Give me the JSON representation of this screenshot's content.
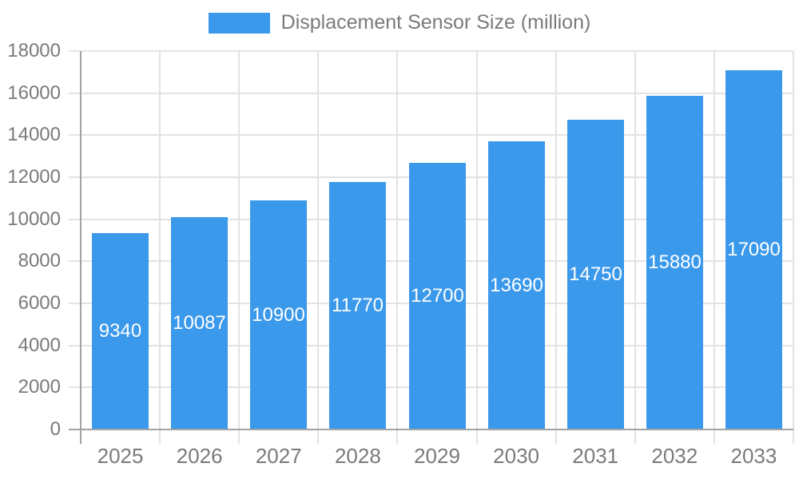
{
  "legend": {
    "label": "Displacement Sensor Size (million)"
  },
  "colors": {
    "bar": "#3B99EC",
    "grid": "#E3E3E3",
    "axis": "#A3A3A3",
    "text": "#7A7A7A",
    "value_label": "#FFFFFF",
    "background": "#FFFFFF"
  },
  "chart_data": {
    "type": "bar",
    "title": "Displacement Sensor Size (million)",
    "categories": [
      "2025",
      "2026",
      "2027",
      "2028",
      "2029",
      "2030",
      "2031",
      "2032",
      "2033"
    ],
    "values": [
      9340,
      10087,
      10900,
      11770,
      12700,
      13690,
      14750,
      15880,
      17090
    ],
    "series_name": "Displacement Sensor Size (million)",
    "xlabel": "",
    "ylabel": "",
    "ylim": [
      0,
      18000
    ],
    "ytick_step": 2000,
    "yticks": [
      0,
      2000,
      4000,
      6000,
      8000,
      10000,
      12000,
      14000,
      16000,
      18000
    ],
    "grid": true,
    "legend_position": "top-center",
    "value_labels": "inside-bar-centered-white"
  }
}
